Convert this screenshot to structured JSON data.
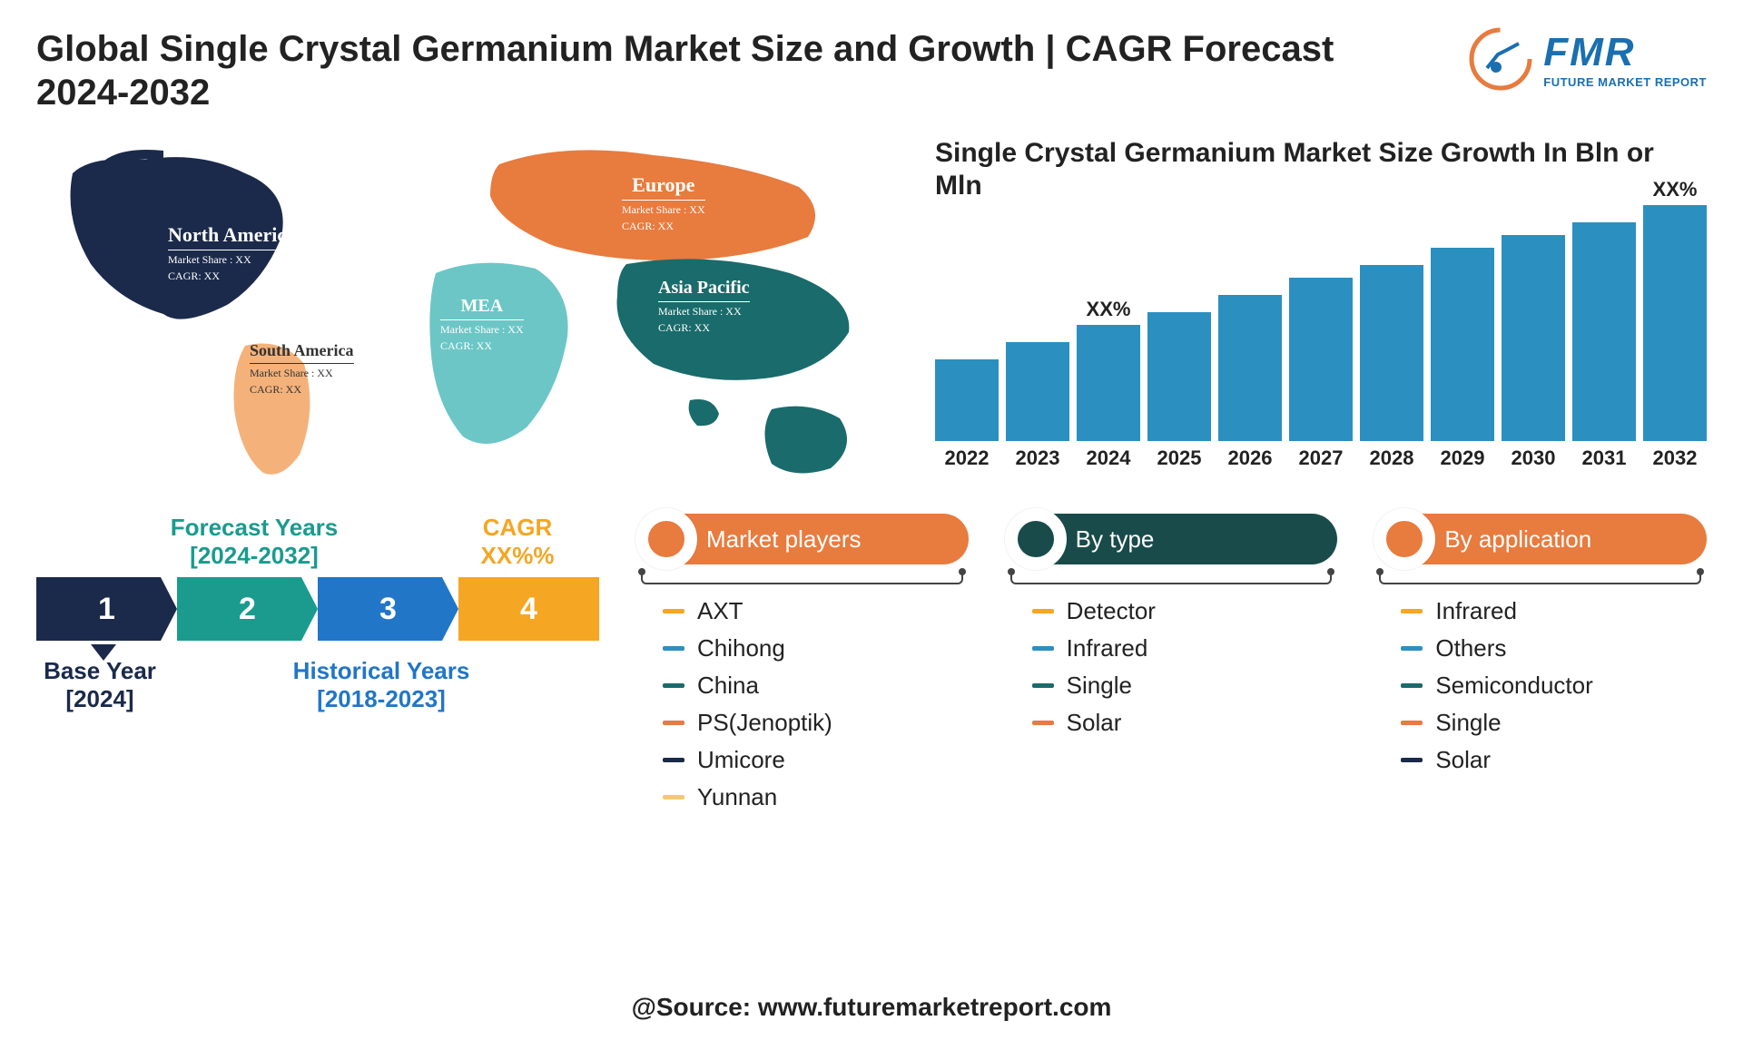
{
  "title": "Global Single Crystal Germanium  Market Size and Growth | CAGR Forecast 2024-2032",
  "logo": {
    "abbr": "FMR",
    "sub": "FUTURE MARKET REPORT"
  },
  "regions": {
    "north_america": {
      "name": "North America",
      "share": "Market Share : XX",
      "cagr": "CAGR: XX",
      "color": "#1b2a4b"
    },
    "south_america": {
      "name": "South America",
      "share": "Market Share : XX",
      "cagr": "CAGR: XX",
      "color": "#f4b27a"
    },
    "europe": {
      "name": "Europe",
      "share": "Market Share : XX",
      "cagr": "CAGR: XX",
      "color": "#e87b3e"
    },
    "mea": {
      "name": "MEA",
      "share": "Market Share : XX",
      "cagr": "CAGR: XX",
      "color": "#6cc6c6"
    },
    "asia_pacific": {
      "name": "Asia Pacific",
      "share": "Market Share : XX",
      "cagr": "CAGR: XX",
      "color": "#1a6b6b"
    }
  },
  "chart": {
    "title": "Single Crystal Germanium  Market Size Growth In Bln or Mln",
    "years": [
      "2022",
      "2023",
      "2024",
      "2025",
      "2026",
      "2027",
      "2028",
      "2029",
      "2030",
      "2031",
      "2032"
    ],
    "values": [
      95,
      115,
      135,
      150,
      170,
      190,
      205,
      225,
      240,
      255,
      275
    ],
    "bar_color": "#2b8fbf",
    "annot_2024": "XX%",
    "annot_2032": "XX%"
  },
  "timeline": {
    "forecast": {
      "label": "Forecast Years",
      "range": "[2024-2032]",
      "color": "#1a9b8e"
    },
    "cagr": {
      "label": "CAGR",
      "value": "XX%%",
      "color": "#f5a623"
    },
    "base": {
      "label": "Base Year",
      "range": "[2024]",
      "color": "#1b2a4b"
    },
    "historical": {
      "label": "Historical Years",
      "range": "[2018-2023]",
      "color": "#2176c7"
    },
    "segments": [
      "1",
      "2",
      "3",
      "4"
    ]
  },
  "categories": {
    "market_players": {
      "title": "Market players",
      "header_color": "#e87b3e",
      "items": [
        "AXT",
        "Chihong",
        "China",
        "PS(Jenoptik)",
        "Umicore",
        "Yunnan"
      ],
      "tick_colors": [
        "#f5a623",
        "#2b8fbf",
        "#1a6b6b",
        "#e87b3e",
        "#1b2a4b",
        "#f4c77a"
      ]
    },
    "by_type": {
      "title": "By type",
      "header_color": "#1a4b4b",
      "items": [
        "Detector",
        "Infrared",
        "Single",
        "Solar"
      ],
      "tick_colors": [
        "#f5a623",
        "#2b8fbf",
        "#1a6b6b",
        "#e87b3e"
      ]
    },
    "by_application": {
      "title": "By application",
      "header_color": "#e87b3e",
      "items": [
        "Infrared",
        "Others",
        "Semiconductor",
        "Single",
        "Solar"
      ],
      "tick_colors": [
        "#f5a623",
        "#2b8fbf",
        "#1a6b6b",
        "#e87b3e",
        "#1b2a4b"
      ]
    }
  },
  "source": "@Source: www.futuremarketreport.com"
}
